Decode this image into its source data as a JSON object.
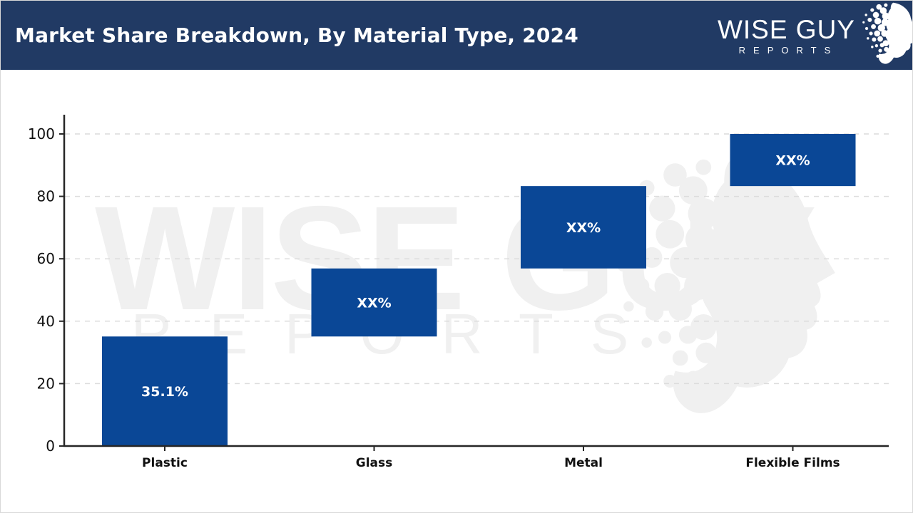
{
  "header": {
    "title": "Market Share Breakdown, By Material Type, 2024",
    "logo": {
      "line1": "WISE GUY",
      "line2": "REPORTS"
    }
  },
  "watermark": {
    "line1": "WISE GUY",
    "line2": "REPORTS"
  },
  "colors": {
    "header_bg": "#213a64",
    "bar": "#0a4796",
    "bar_label": "#ffffff",
    "grid": "#dcdcdc",
    "axis": "#262626",
    "tick_label": "#111111",
    "watermark": "#f0f0f0",
    "page_border": "#d9d9d9"
  },
  "chart_data": {
    "type": "bar",
    "variant": "waterfall",
    "title": "Market Share Breakdown, By Material Type, 2024",
    "categories": [
      "Plastic",
      "Glass",
      "Metal",
      "Flexible Films"
    ],
    "series": [
      {
        "name": "Market Share (%)",
        "segments": [
          [
            0,
            35.1
          ],
          [
            35.1,
            56.9
          ],
          [
            56.9,
            83.3
          ],
          [
            83.3,
            100
          ]
        ]
      }
    ],
    "bar_labels": [
      "35.1%",
      "XX%",
      "XX%",
      "XX%"
    ],
    "ylim": [
      0,
      100
    ],
    "yticks": [
      0,
      20,
      40,
      60,
      80,
      100
    ],
    "grid": "dashed-horizontal",
    "legend": "none",
    "xlabel": "",
    "ylabel": ""
  }
}
